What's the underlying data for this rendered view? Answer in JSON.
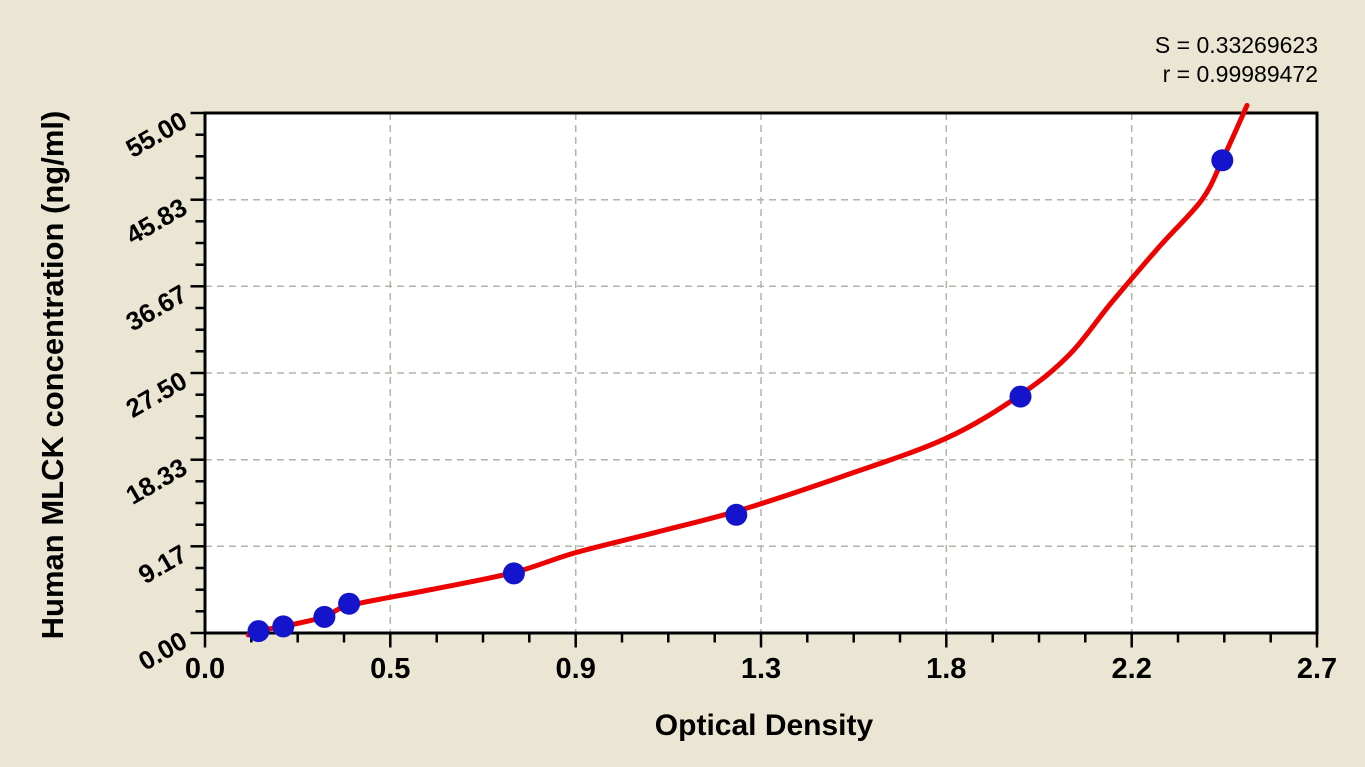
{
  "chart_data": {
    "type": "scatter",
    "title": "",
    "xlabel": "Optical Density",
    "ylabel": "Human MLCK concentration (ng/ml)",
    "xlim": [
      0,
      2.7
    ],
    "ylim": [
      0,
      55
    ],
    "x_ticks": [
      {
        "pos": 0.0,
        "label": "0.0"
      },
      {
        "pos": 0.45,
        "label": "0.5"
      },
      {
        "pos": 0.9,
        "label": "0.9"
      },
      {
        "pos": 1.35,
        "label": "1.3"
      },
      {
        "pos": 1.8,
        "label": "1.8"
      },
      {
        "pos": 2.25,
        "label": "2.2"
      },
      {
        "pos": 2.7,
        "label": "2.7"
      }
    ],
    "y_ticks": [
      {
        "pos": 0.0,
        "label": "0.00"
      },
      {
        "pos": 9.17,
        "label": "9.17"
      },
      {
        "pos": 18.33,
        "label": "18.33"
      },
      {
        "pos": 27.5,
        "label": "27.50"
      },
      {
        "pos": 36.67,
        "label": "36.67"
      },
      {
        "pos": 45.83,
        "label": "45.83"
      },
      {
        "pos": 55.0,
        "label": "55.00"
      }
    ],
    "minor_divisions": 4,
    "grid": {
      "style": "dashed",
      "at": "major-ticks",
      "on": true
    },
    "legend": "none",
    "points": [
      {
        "od": 0.13,
        "conc": 0.2
      },
      {
        "od": 0.19,
        "conc": 0.7
      },
      {
        "od": 0.29,
        "conc": 1.7
      },
      {
        "od": 0.35,
        "conc": 3.1
      },
      {
        "od": 0.75,
        "conc": 6.3
      },
      {
        "od": 1.29,
        "conc": 12.5
      },
      {
        "od": 1.98,
        "conc": 25.0
      },
      {
        "od": 2.47,
        "conc": 50.0
      }
    ],
    "curve_anchors": [
      [
        0.105,
        -0.2
      ],
      [
        0.13,
        0.25
      ],
      [
        0.19,
        0.7
      ],
      [
        0.29,
        1.7
      ],
      [
        0.35,
        2.9
      ],
      [
        0.55,
        4.6
      ],
      [
        0.75,
        6.4
      ],
      [
        0.9,
        8.5
      ],
      [
        1.1,
        10.7
      ],
      [
        1.3,
        13.0
      ],
      [
        1.55,
        16.6
      ],
      [
        1.8,
        20.6
      ],
      [
        1.98,
        25.2
      ],
      [
        2.1,
        29.5
      ],
      [
        2.2,
        34.9
      ],
      [
        2.32,
        41.0
      ],
      [
        2.42,
        45.8
      ],
      [
        2.47,
        50.0
      ],
      [
        2.53,
        55.8
      ]
    ],
    "stats": {
      "s": "S = 0.33269623",
      "r": "r = 0.99989472"
    },
    "colors": {
      "background": "#EAE6D3",
      "plot_bg": "#FFFFFF",
      "curve": "#EE0101",
      "points": "#1414CC",
      "grid": "#B4B4AA",
      "axis": "#000000",
      "text": "#000000"
    }
  }
}
